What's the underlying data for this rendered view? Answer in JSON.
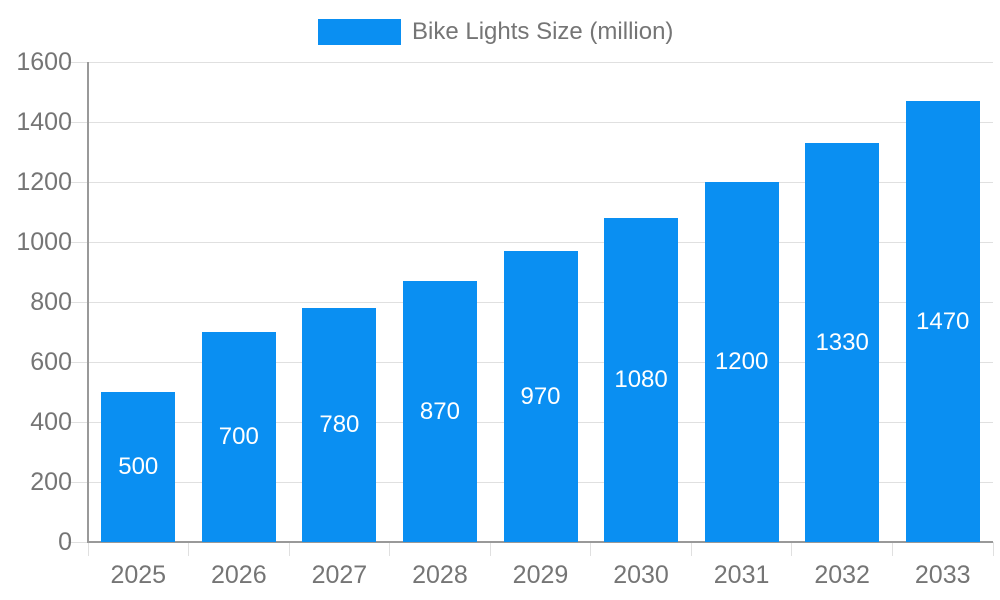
{
  "legend": {
    "label": "Bike Lights Size (million)"
  },
  "colors": {
    "bar": "#0a8ff2",
    "axis_line": "#999999",
    "grid_line": "#e0e0e0",
    "tick_label": "#757575",
    "bar_label": "#ffffff",
    "legend_label": "#757575",
    "background": "#ffffff"
  },
  "chart_data": {
    "type": "bar",
    "title": "Bike Lights Size (million)",
    "categories": [
      "2025",
      "2026",
      "2027",
      "2028",
      "2029",
      "2030",
      "2031",
      "2032",
      "2033"
    ],
    "values": [
      500,
      700,
      780,
      870,
      970,
      1080,
      1200,
      1330,
      1470
    ],
    "xlabel": "",
    "ylabel": "",
    "ylim": [
      0,
      1600
    ],
    "ytick_step": 200,
    "grid": true,
    "legend_position": "top-center",
    "value_labels_position": "inside-center"
  }
}
